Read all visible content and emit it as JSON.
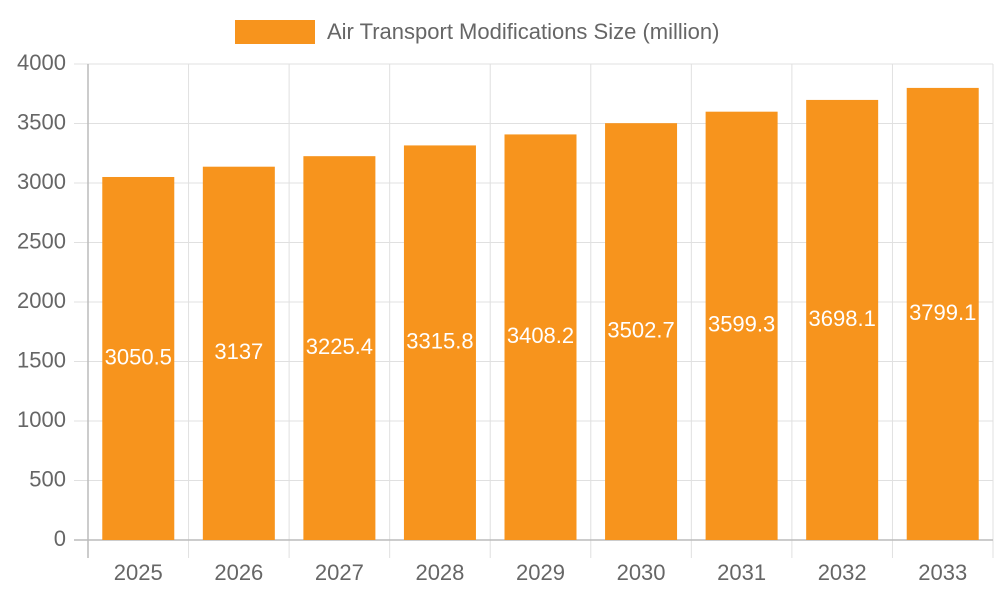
{
  "chart_data": {
    "type": "bar",
    "categories": [
      "2025",
      "2026",
      "2027",
      "2028",
      "2029",
      "2030",
      "2031",
      "2032",
      "2033"
    ],
    "series": [
      {
        "name": "Air Transport Modifications Size (million)",
        "color": "#f7941d",
        "values": [
          3050.5,
          3137,
          3225.4,
          3315.8,
          3408.2,
          3502.7,
          3599.3,
          3698.1,
          3799.1
        ]
      }
    ],
    "ylim": [
      0,
      4000
    ],
    "yticks": [
      0,
      500,
      1000,
      1500,
      2000,
      2500,
      3000,
      3500,
      4000
    ],
    "grid": true,
    "legend": "top"
  }
}
